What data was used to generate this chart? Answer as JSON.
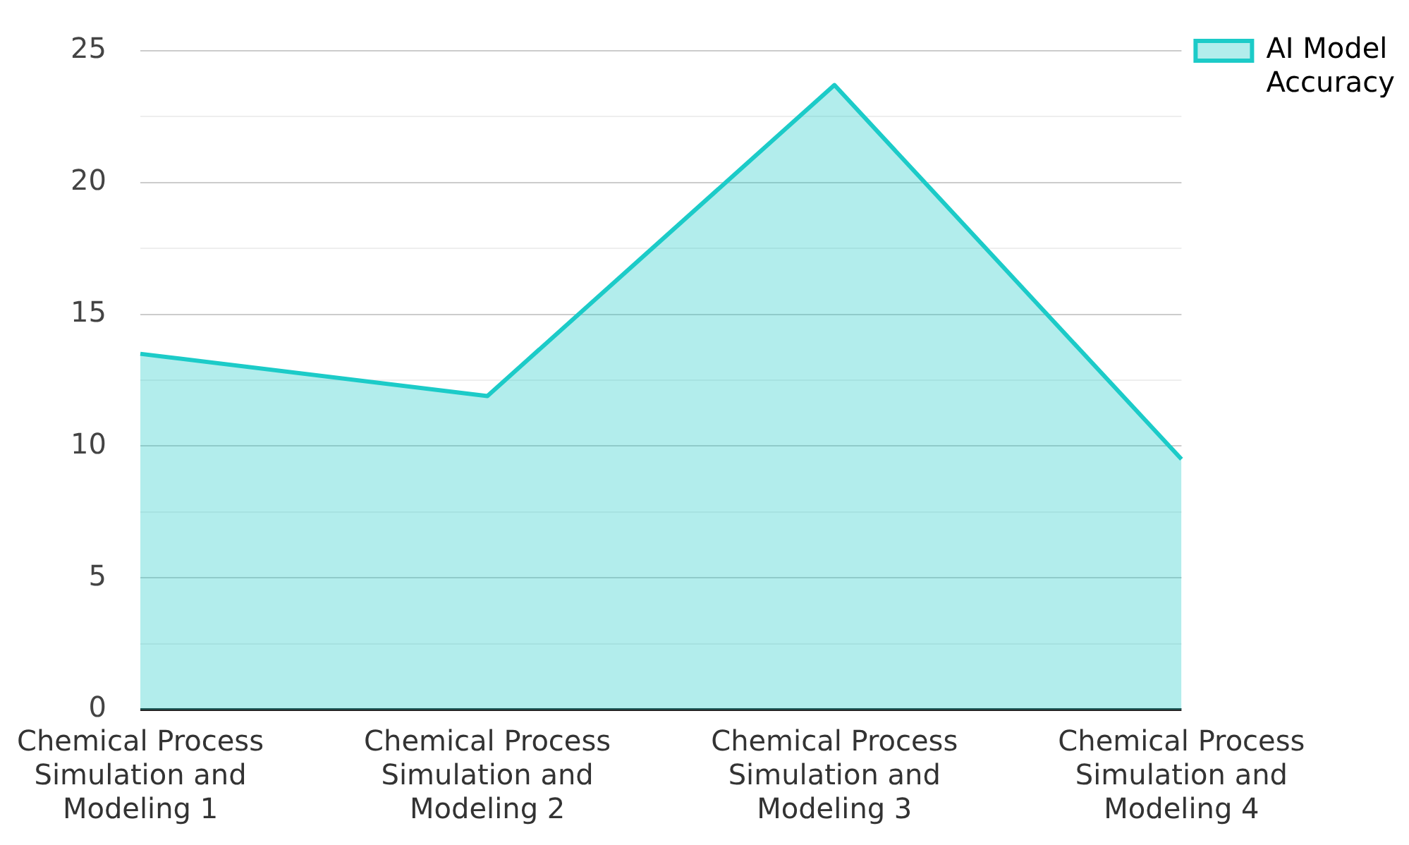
{
  "chart_data": {
    "type": "area",
    "categories": [
      "Chemical Process Simulation and Modeling 1",
      "Chemical Process Simulation and Modeling 2",
      "Chemical Process Simulation and Modeling 3",
      "Chemical Process Simulation and Modeling 4"
    ],
    "series": [
      {
        "name": "AI Model Accuracy",
        "color": "#1ccbc8",
        "values": [
          13.5,
          11.9,
          23.7,
          9.5
        ]
      }
    ],
    "ylim": [
      0,
      25
    ],
    "yticks": [
      0,
      {
        "value": 2.5,
        "label": null
      },
      5,
      {
        "value": 7.5,
        "label": null
      },
      10,
      {
        "value": 12.5,
        "label": null
      },
      15,
      {
        "value": 17.5,
        "label": null
      },
      20,
      {
        "value": 22.5,
        "label": null
      },
      25
    ],
    "grid": "y",
    "legend": "top right",
    "marker": "none",
    "line_style": "solid"
  }
}
